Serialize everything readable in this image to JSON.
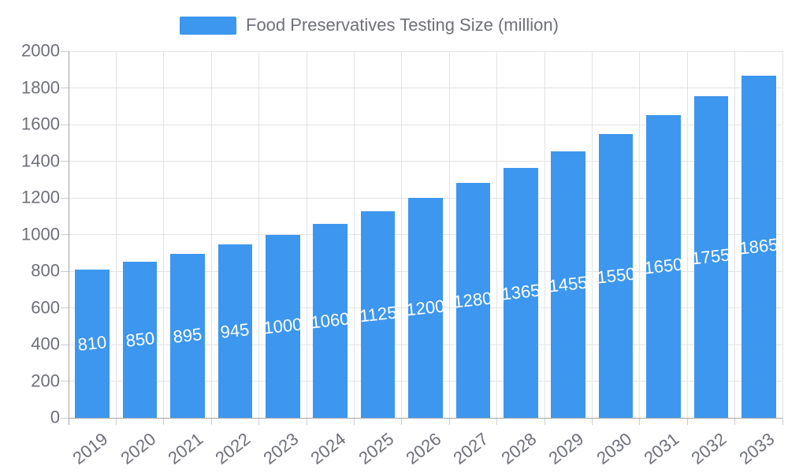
{
  "legend": {
    "label": "Food Preservatives Testing Size (million)"
  },
  "chart_data": {
    "type": "bar",
    "title": "Food Preservatives Testing Size (million)",
    "categories": [
      "2019",
      "2020",
      "2021",
      "2022",
      "2023",
      "2024",
      "2025",
      "2026",
      "2027",
      "2028",
      "2029",
      "2030",
      "2031",
      "2032",
      "2033"
    ],
    "values": [
      810,
      850,
      895,
      945,
      1000,
      1060,
      1125,
      1200,
      1280,
      1365,
      1455,
      1550,
      1650,
      1755,
      1865
    ],
    "series": [
      {
        "name": "Food Preservatives Testing Size (million)",
        "values": [
          810,
          850,
          895,
          945,
          1000,
          1060,
          1125,
          1200,
          1280,
          1365,
          1455,
          1550,
          1650,
          1755,
          1865
        ]
      }
    ],
    "xlabel": "",
    "ylabel": "",
    "ylim": [
      0,
      2000
    ],
    "ytick_step": 200,
    "ytick_labels": [
      "0",
      "200",
      "400",
      "600",
      "800",
      "1000",
      "1200",
      "1400",
      "1600",
      "1800",
      "2000"
    ],
    "grid": true,
    "legend_position": "top",
    "value_labels": "inside-center-white",
    "colors": {
      "bar": "#3D97EE",
      "grid": "#E3E3E3",
      "axis": "#A6A6A6",
      "tick": "#CCCCCC",
      "axis_text": "#6E7079",
      "value_label_text": "#FFFFFF",
      "background": "#FFFFFF"
    }
  }
}
